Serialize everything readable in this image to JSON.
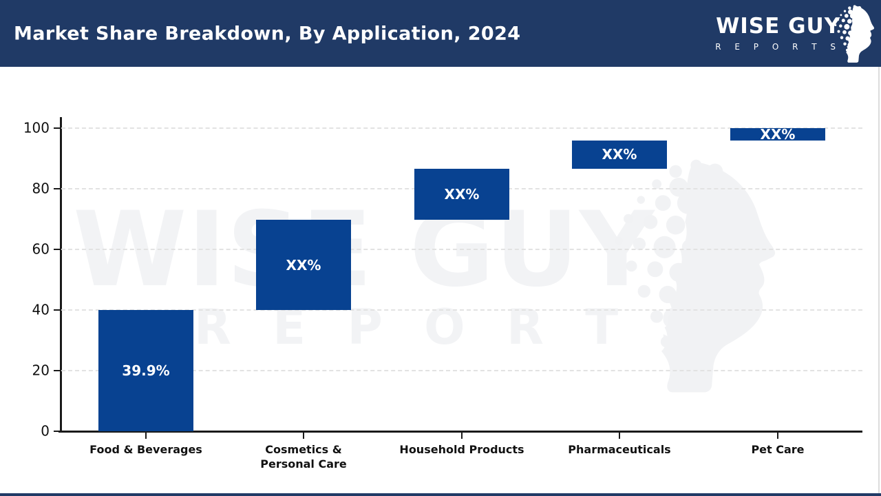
{
  "header": {
    "title": "Market Share Breakdown, By Application, 2024",
    "brand_name": "WISE GUY",
    "brand_sub": "R E P O R T S"
  },
  "watermark": {
    "line1": "WISE GUY",
    "line2": "R E P O R T S"
  },
  "colors": {
    "header_bg": "#203a66",
    "bar": "#084291",
    "grid": "#e2e2e2",
    "axis": "#1a1a1a",
    "bar_label": "#ffffff",
    "watermark": "#f2f3f5"
  },
  "chart_data": {
    "type": "bar",
    "subtype": "waterfall",
    "title": "Market Share Breakdown, By Application, 2024",
    "xlabel": "",
    "ylabel": "",
    "ylim": [
      0,
      100
    ],
    "yticks": [
      0,
      20,
      40,
      60,
      80,
      100
    ],
    "grid": "horizontal-dashed",
    "legend": "none",
    "categories": [
      "Food & Beverages",
      "Cosmetics & Personal Care",
      "Household Products",
      "Pharmaceuticals",
      "Pet Care"
    ],
    "category_label_lines": [
      [
        "Food & Beverages"
      ],
      [
        "Cosmetics &",
        "Personal Care"
      ],
      [
        "Household Products"
      ],
      [
        "Pharmaceuticals"
      ],
      [
        "Pet Care"
      ]
    ],
    "segments": [
      {
        "category": "Food & Beverages",
        "label": "39.9%",
        "start": 0,
        "end": 39.9
      },
      {
        "category": "Cosmetics & Personal Care",
        "label": "XX%",
        "start": 39.9,
        "end": 69.8
      },
      {
        "category": "Household Products",
        "label": "XX%",
        "start": 69.8,
        "end": 86.6
      },
      {
        "category": "Pharmaceuticals",
        "label": "XX%",
        "start": 86.6,
        "end": 95.9
      },
      {
        "category": "Pet Care",
        "label": "XX%",
        "start": 95.9,
        "end": 100
      }
    ]
  }
}
